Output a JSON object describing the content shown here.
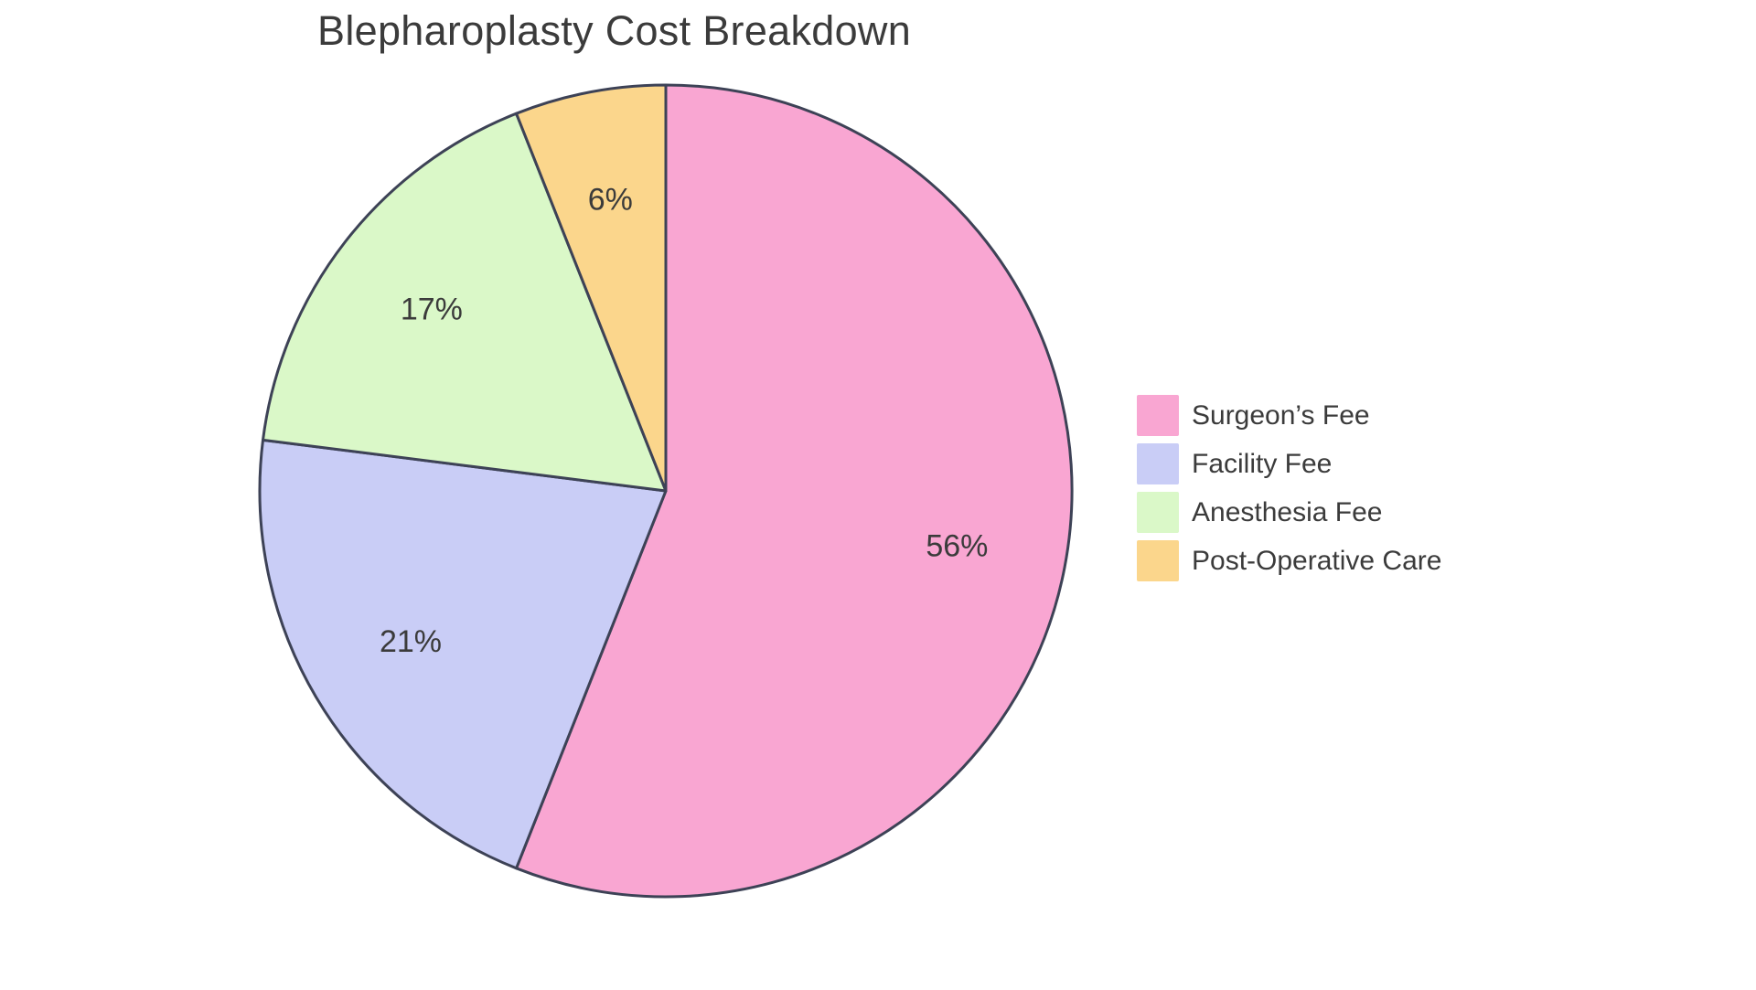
{
  "chart_data": {
    "type": "pie",
    "title": "Blepharoplasty Cost Breakdown",
    "labels": [
      "Surgeon’s Fee",
      "Facility Fee",
      "Anesthesia Fee",
      "Post-Operative Care"
    ],
    "values": [
      56,
      21,
      17,
      6
    ],
    "value_labels": [
      "56%",
      "21%",
      "17%",
      "6%"
    ],
    "colors": [
      "#F9A6D2",
      "#C9CDF6",
      "#DAF8C8",
      "#FBD68C"
    ],
    "slice_stroke": "#3D4256",
    "slice_stroke_width": 3,
    "start_angle_deg": -90,
    "direction": "clockwise",
    "label_radius_fraction": 0.73,
    "label_font_size": 34,
    "text_color": "#3B3B3B",
    "legend_position": "right",
    "background": "#FFFFFF"
  }
}
